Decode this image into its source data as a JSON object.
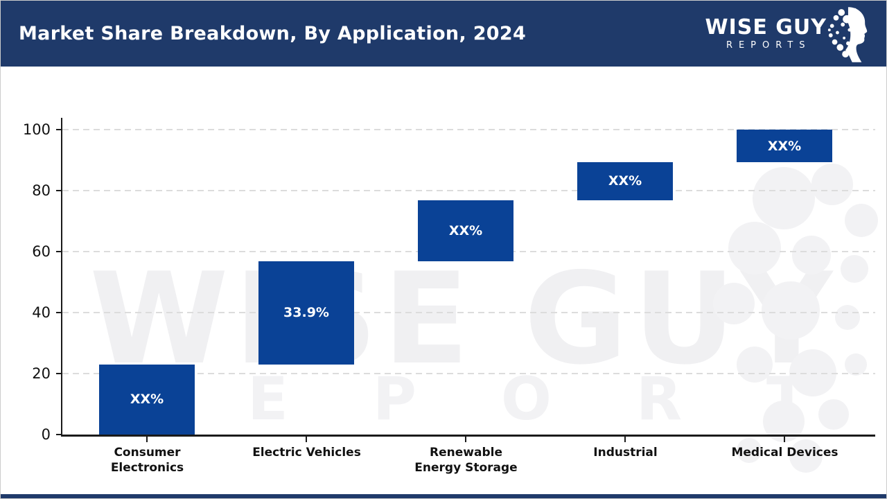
{
  "header": {
    "title": "Market Share Breakdown, By Application, 2024",
    "brand": {
      "line1": "WISE GUY",
      "line2": "REPORTS"
    }
  },
  "watermark": {
    "line1": "WISE GUY",
    "line2": "R E P O R T S"
  },
  "chart_data": {
    "type": "bar",
    "subtype": "waterfall",
    "title": "Market Share Breakdown, By Application, 2024",
    "categories": [
      "Consumer Electronics",
      "Electric Vehicles",
      "Renewable Energy Storage",
      "Industrial",
      "Medical Devices"
    ],
    "segments": [
      {
        "category": "Consumer Electronics",
        "start": 0,
        "end": 23,
        "label": "XX%"
      },
      {
        "category": "Electric Vehicles",
        "start": 23,
        "end": 56.9,
        "label": "33.9%"
      },
      {
        "category": "Renewable Energy Storage",
        "start": 56.9,
        "end": 76.9,
        "label": "XX%"
      },
      {
        "category": "Industrial",
        "start": 76.9,
        "end": 89.3,
        "label": "XX%"
      },
      {
        "category": "Medical Devices",
        "start": 89.3,
        "end": 100,
        "label": "XX%"
      }
    ],
    "ylim": [
      0,
      100
    ],
    "yticks": [
      0,
      20,
      40,
      60,
      80,
      100
    ],
    "xlabel": "",
    "ylabel": "",
    "grid": true,
    "legend": false,
    "bar_color": "#0a4296",
    "gridline_color": "#dcdcdc"
  },
  "colors": {
    "header_bg": "#1f3a6a",
    "footer_bg": "#1f3a6a",
    "bar": "#0a4296",
    "watermark": "#f0f0f2"
  }
}
